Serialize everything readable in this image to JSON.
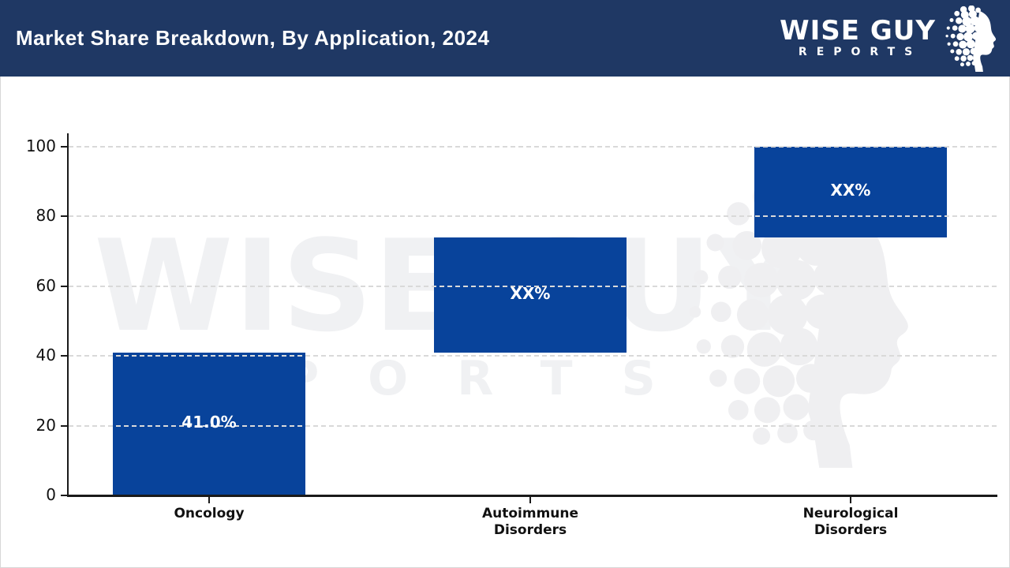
{
  "header": {
    "title": "Market Share Breakdown, By Application, 2024"
  },
  "logo": {
    "line1": "WISE GUY",
    "line2": "REPORTS",
    "icon": "dotted-head-profile",
    "color": "#ffffff",
    "background": "#1f3864"
  },
  "watermark": {
    "line1": "WISE GUY",
    "line2": "REPORTS",
    "color": "#f0f1f3"
  },
  "chart_data": {
    "type": "bar",
    "variant": "waterfall",
    "title": "Market Share Breakdown, By Application, 2024",
    "categories": [
      "Oncology",
      "Autoimmune\nDisorders",
      "Neurological\nDisorders"
    ],
    "bars": [
      {
        "category": "Oncology",
        "start": 0,
        "end": 41,
        "value_label": "41.0%"
      },
      {
        "category": "Autoimmune Disorders",
        "start": 41,
        "end": 74,
        "value_label": "XX%"
      },
      {
        "category": "Neurological Disorders",
        "start": 74,
        "end": 100,
        "value_label": "XX%"
      }
    ],
    "ylim": [
      0,
      100
    ],
    "yticks": [
      0,
      20,
      40,
      60,
      80,
      100
    ],
    "xlabel": "",
    "ylabel": "",
    "grid": "horizontal-dashed-over-bars",
    "legend": "none",
    "bar_color": "#08439b",
    "grid_color": "#d9d9d9",
    "axis_color": "#1a1a1a",
    "value_label_color": "#ffffff"
  },
  "colors": {
    "header_bg": "#1f3864",
    "figure_bg": "#ffffff",
    "border": "#d7d7d7"
  }
}
